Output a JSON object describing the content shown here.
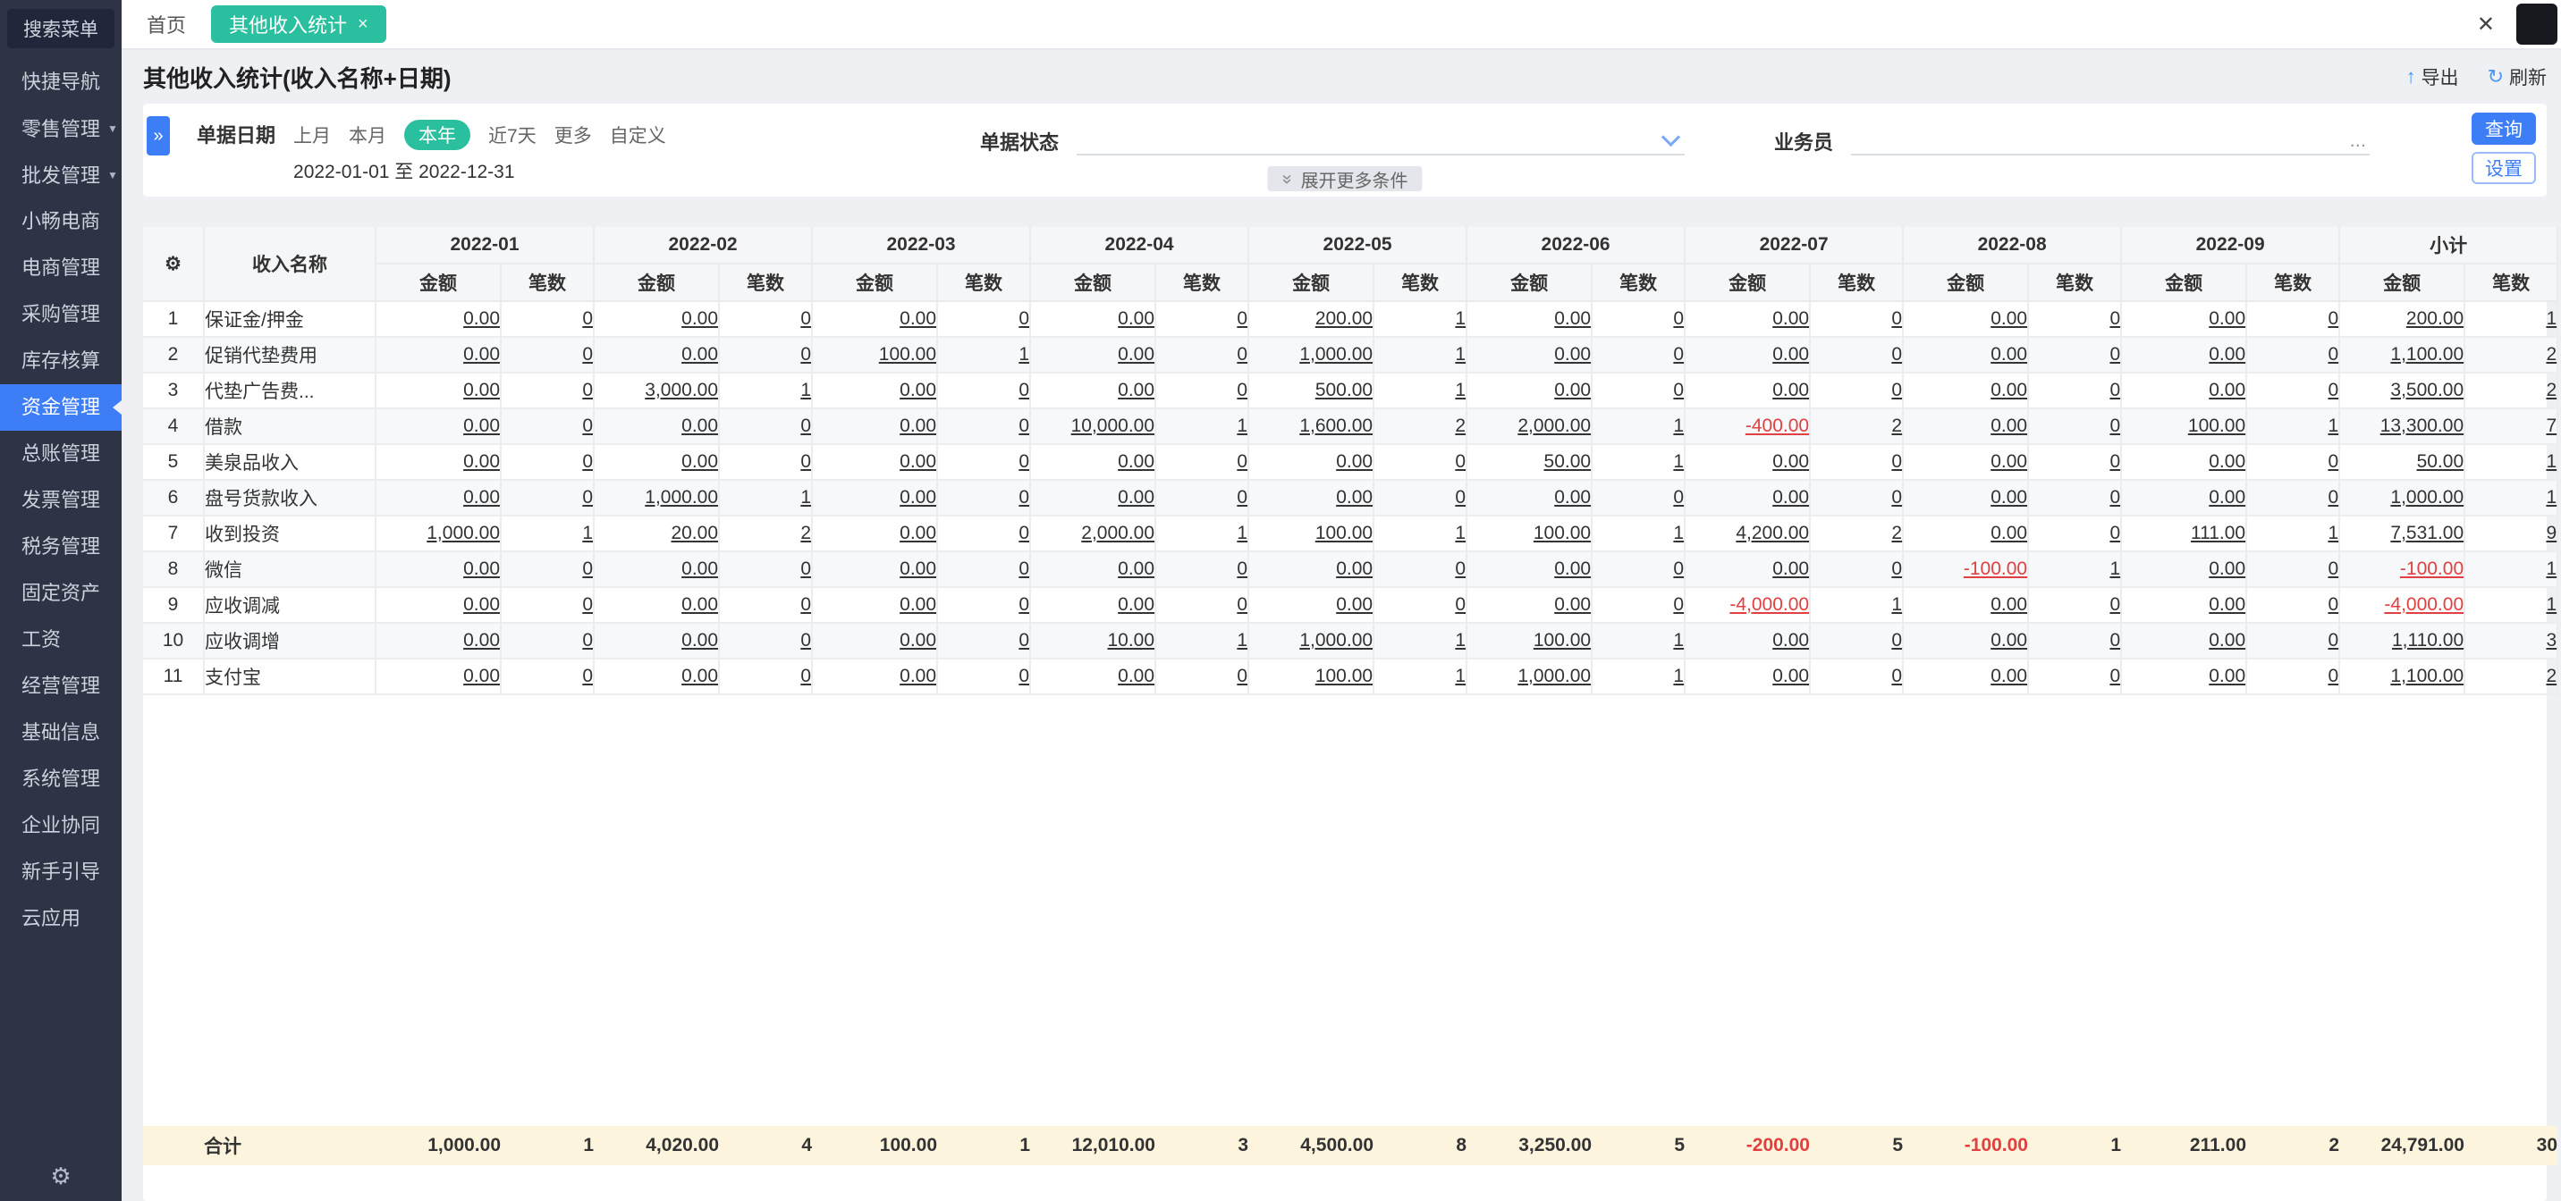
{
  "window": {
    "close_icon": "✕"
  },
  "icons": {
    "gear": "⚙",
    "export": "↑",
    "refresh": "↻",
    "expand": "»",
    "double_chevron": "«"
  },
  "colors": {
    "accent_blue": "#3d7ef7",
    "tab_green": "#2abf9e",
    "negative_red": "#e0403f",
    "sidebar_bg": "#2e3446",
    "total_row_bg": "#fcf4dc"
  },
  "tabs": {
    "home": "首页",
    "active_label": "其他收入统计",
    "close_icon": "×"
  },
  "sidebar": {
    "search": "搜索菜单",
    "items": [
      {
        "label": "快捷导航"
      },
      {
        "label": "零售管理",
        "arrow": true
      },
      {
        "label": "批发管理",
        "arrow": true
      },
      {
        "label": "小畅电商"
      },
      {
        "label": "电商管理"
      },
      {
        "label": "采购管理"
      },
      {
        "label": "库存核算"
      },
      {
        "label": "资金管理",
        "active": true
      },
      {
        "label": "总账管理"
      },
      {
        "label": "发票管理"
      },
      {
        "label": "税务管理"
      },
      {
        "label": "固定资产"
      },
      {
        "label": "工资"
      },
      {
        "label": "经营管理"
      },
      {
        "label": "基础信息"
      },
      {
        "label": "系统管理"
      },
      {
        "label": "企业协同"
      },
      {
        "label": "新手引导"
      },
      {
        "label": "云应用"
      }
    ]
  },
  "page": {
    "title": "其他收入统计(收入名称+日期)",
    "export_label": "导出",
    "refresh_label": "刷新"
  },
  "filters": {
    "date_label": "单据日期",
    "date_options": [
      "上月",
      "本月",
      "本年",
      "近7天",
      "更多",
      "自定义"
    ],
    "date_selected": "本年",
    "date_range": "2022-01-01 至 2022-12-31",
    "status_label": "单据状态",
    "salesman_label": "业务员",
    "ellipsis": "...",
    "query": "查询",
    "settings": "设置",
    "expand_more": "展开更多条件"
  },
  "table": {
    "settings_icon": "⚙",
    "name_header": "收入名称",
    "amount_header": "金额",
    "count_header": "笔数",
    "subtotal_header": "小计",
    "months": [
      "2022-01",
      "2022-02",
      "2022-03",
      "2022-04",
      "2022-05",
      "2022-06",
      "2022-07",
      "2022-08",
      "2022-09"
    ],
    "rows": [
      {
        "name": "保证金/押金",
        "cells": [
          [
            "0.00",
            "0"
          ],
          [
            "0.00",
            "0"
          ],
          [
            "0.00",
            "0"
          ],
          [
            "0.00",
            "0"
          ],
          [
            "200.00",
            "1"
          ],
          [
            "0.00",
            "0"
          ],
          [
            "0.00",
            "0"
          ],
          [
            "0.00",
            "0"
          ],
          [
            "0.00",
            "0"
          ],
          [
            "200.00",
            "1"
          ]
        ]
      },
      {
        "name": "促销代垫费用",
        "cells": [
          [
            "0.00",
            "0"
          ],
          [
            "0.00",
            "0"
          ],
          [
            "100.00",
            "1"
          ],
          [
            "0.00",
            "0"
          ],
          [
            "1,000.00",
            "1"
          ],
          [
            "0.00",
            "0"
          ],
          [
            "0.00",
            "0"
          ],
          [
            "0.00",
            "0"
          ],
          [
            "0.00",
            "0"
          ],
          [
            "1,100.00",
            "2"
          ]
        ]
      },
      {
        "name": "代垫广告费...",
        "cells": [
          [
            "0.00",
            "0"
          ],
          [
            "3,000.00",
            "1"
          ],
          [
            "0.00",
            "0"
          ],
          [
            "0.00",
            "0"
          ],
          [
            "500.00",
            "1"
          ],
          [
            "0.00",
            "0"
          ],
          [
            "0.00",
            "0"
          ],
          [
            "0.00",
            "0"
          ],
          [
            "0.00",
            "0"
          ],
          [
            "3,500.00",
            "2"
          ]
        ]
      },
      {
        "name": "借款",
        "cells": [
          [
            "0.00",
            "0"
          ],
          [
            "0.00",
            "0"
          ],
          [
            "0.00",
            "0"
          ],
          [
            "10,000.00",
            "1"
          ],
          [
            "1,600.00",
            "2"
          ],
          [
            "2,000.00",
            "1"
          ],
          [
            "-400.00",
            "2"
          ],
          [
            "0.00",
            "0"
          ],
          [
            "100.00",
            "1"
          ],
          [
            "13,300.00",
            "7"
          ]
        ]
      },
      {
        "name": "美泉品收入",
        "cells": [
          [
            "0.00",
            "0"
          ],
          [
            "0.00",
            "0"
          ],
          [
            "0.00",
            "0"
          ],
          [
            "0.00",
            "0"
          ],
          [
            "0.00",
            "0"
          ],
          [
            "50.00",
            "1"
          ],
          [
            "0.00",
            "0"
          ],
          [
            "0.00",
            "0"
          ],
          [
            "0.00",
            "0"
          ],
          [
            "50.00",
            "1"
          ]
        ]
      },
      {
        "name": "盘号货款收入",
        "cells": [
          [
            "0.00",
            "0"
          ],
          [
            "1,000.00",
            "1"
          ],
          [
            "0.00",
            "0"
          ],
          [
            "0.00",
            "0"
          ],
          [
            "0.00",
            "0"
          ],
          [
            "0.00",
            "0"
          ],
          [
            "0.00",
            "0"
          ],
          [
            "0.00",
            "0"
          ],
          [
            "0.00",
            "0"
          ],
          [
            "1,000.00",
            "1"
          ]
        ]
      },
      {
        "name": "收到投资",
        "cells": [
          [
            "1,000.00",
            "1"
          ],
          [
            "20.00",
            "2"
          ],
          [
            "0.00",
            "0"
          ],
          [
            "2,000.00",
            "1"
          ],
          [
            "100.00",
            "1"
          ],
          [
            "100.00",
            "1"
          ],
          [
            "4,200.00",
            "2"
          ],
          [
            "0.00",
            "0"
          ],
          [
            "111.00",
            "1"
          ],
          [
            "7,531.00",
            "9"
          ]
        ]
      },
      {
        "name": "微信",
        "cells": [
          [
            "0.00",
            "0"
          ],
          [
            "0.00",
            "0"
          ],
          [
            "0.00",
            "0"
          ],
          [
            "0.00",
            "0"
          ],
          [
            "0.00",
            "0"
          ],
          [
            "0.00",
            "0"
          ],
          [
            "0.00",
            "0"
          ],
          [
            "-100.00",
            "1"
          ],
          [
            "0.00",
            "0"
          ],
          [
            "-100.00",
            "1"
          ]
        ]
      },
      {
        "name": "应收调减",
        "cells": [
          [
            "0.00",
            "0"
          ],
          [
            "0.00",
            "0"
          ],
          [
            "0.00",
            "0"
          ],
          [
            "0.00",
            "0"
          ],
          [
            "0.00",
            "0"
          ],
          [
            "0.00",
            "0"
          ],
          [
            "-4,000.00",
            "1"
          ],
          [
            "0.00",
            "0"
          ],
          [
            "0.00",
            "0"
          ],
          [
            "-4,000.00",
            "1"
          ]
        ]
      },
      {
        "name": "应收调增",
        "cells": [
          [
            "0.00",
            "0"
          ],
          [
            "0.00",
            "0"
          ],
          [
            "0.00",
            "0"
          ],
          [
            "10.00",
            "1"
          ],
          [
            "1,000.00",
            "1"
          ],
          [
            "100.00",
            "1"
          ],
          [
            "0.00",
            "0"
          ],
          [
            "0.00",
            "0"
          ],
          [
            "0.00",
            "0"
          ],
          [
            "1,110.00",
            "3"
          ]
        ]
      },
      {
        "name": "支付宝",
        "cells": [
          [
            "0.00",
            "0"
          ],
          [
            "0.00",
            "0"
          ],
          [
            "0.00",
            "0"
          ],
          [
            "0.00",
            "0"
          ],
          [
            "100.00",
            "1"
          ],
          [
            "1,000.00",
            "1"
          ],
          [
            "0.00",
            "0"
          ],
          [
            "0.00",
            "0"
          ],
          [
            "0.00",
            "0"
          ],
          [
            "1,100.00",
            "2"
          ]
        ]
      }
    ],
    "total_label": "合计",
    "totals": [
      [
        "1,000.00",
        "1"
      ],
      [
        "4,020.00",
        "4"
      ],
      [
        "100.00",
        "1"
      ],
      [
        "12,010.00",
        "3"
      ],
      [
        "4,500.00",
        "8"
      ],
      [
        "3,250.00",
        "5"
      ],
      [
        "-200.00",
        "5"
      ],
      [
        "-100.00",
        "1"
      ],
      [
        "211.00",
        "2"
      ],
      [
        "24,791.00",
        "30"
      ]
    ]
  }
}
